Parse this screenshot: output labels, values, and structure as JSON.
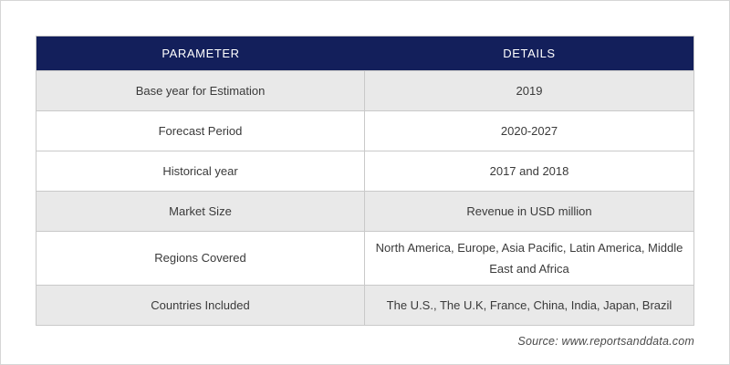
{
  "chart_data": {
    "type": "table",
    "title": "",
    "columns": [
      "PARAMETER",
      "DETAILS"
    ],
    "rows": [
      [
        "Base year for Estimation",
        "2019"
      ],
      [
        "Forecast Period",
        "2020-2027"
      ],
      [
        "Historical year",
        "2017 and 2018"
      ],
      [
        "Market Size",
        "Revenue in USD million"
      ],
      [
        "Regions Covered",
        "North America, Europe, Asia Pacific, Latin America, Middle East and Africa"
      ],
      [
        "Countries Included",
        "The U.S., The  U.K, France, China, India, Japan, Brazil"
      ]
    ],
    "source": "Source: www.reportsanddata.com"
  },
  "colors": {
    "header_bg": "#131f5b",
    "row_shaded": "#e9e9e9",
    "cell_border": "#c9c9c9",
    "outer_border": "#d6d6d6"
  }
}
